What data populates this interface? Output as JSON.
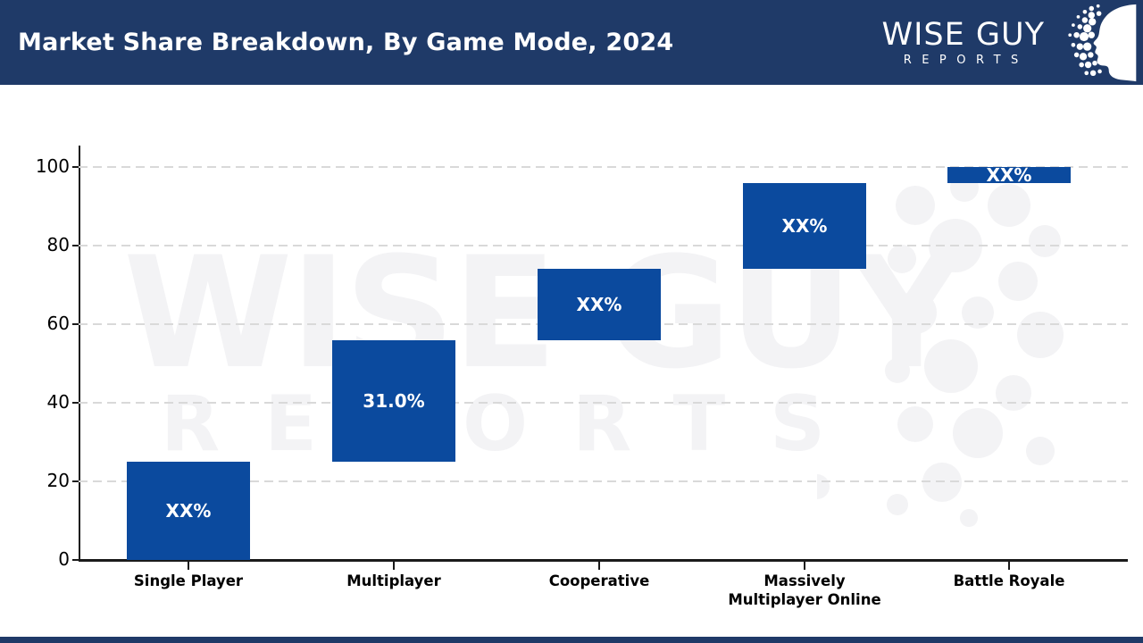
{
  "header": {
    "title": "Market Share Breakdown, By Game Mode, 2024",
    "logo": {
      "line1": "WISE GUY",
      "line2": "REPORTS"
    }
  },
  "watermark": {
    "line1": "WISE GUY",
    "line2": "REPORTS"
  },
  "colors": {
    "banner_navy": "#1f3a68",
    "bar_blue": "#0b4a9e",
    "gridline_gray": "#d9d9d9",
    "watermark_gray": "#f3f3f5",
    "bar_label_white": "#ffffff"
  },
  "chart_data": {
    "type": "bar",
    "subtype": "floating-waterfall",
    "title": "Market Share Breakdown, By Game Mode, 2024",
    "xlabel": "",
    "ylabel": "",
    "ylim": [
      0,
      105
    ],
    "yticks": [
      0,
      20,
      40,
      60,
      80,
      100
    ],
    "grid": "dashed-horizontal",
    "legend": "none",
    "categories": [
      "Single Player",
      "Multiplayer",
      "Cooperative",
      "Massively Multiplayer Online",
      "Battle Royale"
    ],
    "category_display": [
      "Single Player",
      "Multiplayer",
      "Cooperative",
      "Massively\nMultiplayer Online",
      "Battle Royale"
    ],
    "bars": [
      {
        "category": "Single Player",
        "start": 0,
        "end": 25,
        "span": 25,
        "value_label": "XX%"
      },
      {
        "category": "Multiplayer",
        "start": 25,
        "end": 56,
        "span": 31,
        "value_label": "31.0%"
      },
      {
        "category": "Cooperative",
        "start": 56,
        "end": 74,
        "span": 18,
        "value_label": "XX%"
      },
      {
        "category": "Massively Multiplayer Online",
        "start": 74,
        "end": 96,
        "span": 22,
        "value_label": "XX%"
      },
      {
        "category": "Battle Royale",
        "start": 96,
        "end": 100,
        "span": 4,
        "value_label": "XX%"
      }
    ]
  }
}
